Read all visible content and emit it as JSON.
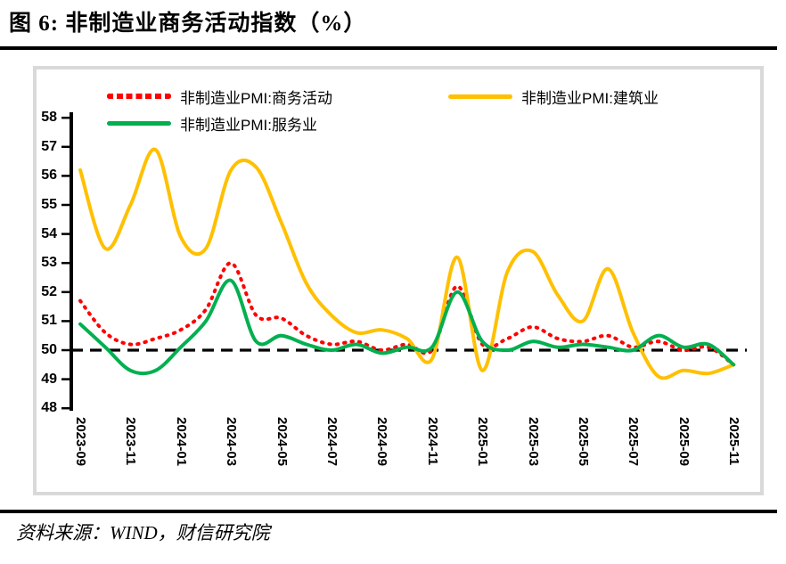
{
  "figure": {
    "title": "图 6:  非制造业商务活动指数（%）",
    "source": "资料来源：WIND，财信研究院"
  },
  "colors": {
    "business_activity": "#FF0000",
    "construction": "#FFC000",
    "services": "#00B050",
    "reference_line": "#000000",
    "frame_border": "#D9D9D9"
  },
  "legend": {
    "items": [
      {
        "label": "非制造业PMI:商务活动",
        "color": "#FF0000",
        "dashed": true
      },
      {
        "label": "非制造业PMI:建筑业",
        "color": "#FFC000",
        "dashed": false
      },
      {
        "label": "非制造业PMI:服务业",
        "color": "#00B050",
        "dashed": false
      }
    ]
  },
  "chart_data": {
    "type": "line",
    "smooth": true,
    "grid": false,
    "legend_position": "top",
    "ylim": [
      48,
      58
    ],
    "y_ticks": [
      48,
      49,
      50,
      51,
      52,
      53,
      54,
      55,
      56,
      57,
      58
    ],
    "reference_line": 50,
    "x": [
      "2023-09",
      "2023-10",
      "2023-11",
      "2023-12",
      "2024-01",
      "2024-02",
      "2024-03",
      "2024-04",
      "2024-05",
      "2024-06",
      "2024-07",
      "2024-08",
      "2024-09",
      "2024-10",
      "2024-11",
      "2024-12",
      "2025-01",
      "2025-02",
      "2025-03",
      "2025-04",
      "2025-05",
      "2025-06",
      "2025-07",
      "2025-08",
      "2025-09",
      "2025-10",
      "2025-11"
    ],
    "x_tick_labels": [
      "2023-09",
      "2023-11",
      "2024-01",
      "2024-03",
      "2024-05",
      "2024-07",
      "2024-09",
      "2024-11",
      "2025-01",
      "2025-03",
      "2025-05",
      "2025-07",
      "2025-09",
      "2025-11"
    ],
    "series": [
      {
        "name": "非制造业PMI:商务活动",
        "color": "#FF0000",
        "dashed": true,
        "values": [
          51.7,
          50.6,
          50.2,
          50.4,
          50.7,
          51.4,
          53.0,
          51.2,
          51.1,
          50.5,
          50.2,
          50.3,
          50.0,
          50.2,
          50.0,
          52.2,
          50.2,
          50.4,
          50.8,
          50.4,
          50.3,
          50.5,
          50.1,
          50.3,
          50.0,
          50.1,
          49.5
        ]
      },
      {
        "name": "非制造业PMI:建筑业",
        "color": "#FFC000",
        "dashed": false,
        "values": [
          56.2,
          53.5,
          55.0,
          56.9,
          53.9,
          53.5,
          56.2,
          56.3,
          54.4,
          52.3,
          51.2,
          50.6,
          50.7,
          50.4,
          49.7,
          53.2,
          49.3,
          52.7,
          53.4,
          51.9,
          51.0,
          52.8,
          50.6,
          49.1,
          49.3,
          49.2,
          49.5
        ]
      },
      {
        "name": "非制造业PMI:服务业",
        "color": "#00B050",
        "dashed": false,
        "values": [
          50.9,
          50.1,
          49.3,
          49.3,
          50.1,
          51.0,
          52.4,
          50.3,
          50.5,
          50.2,
          50.0,
          50.2,
          49.9,
          50.1,
          50.1,
          52.0,
          50.3,
          50.0,
          50.3,
          50.1,
          50.2,
          50.1,
          50.0,
          50.5,
          50.1,
          50.2,
          49.5
        ]
      }
    ]
  }
}
